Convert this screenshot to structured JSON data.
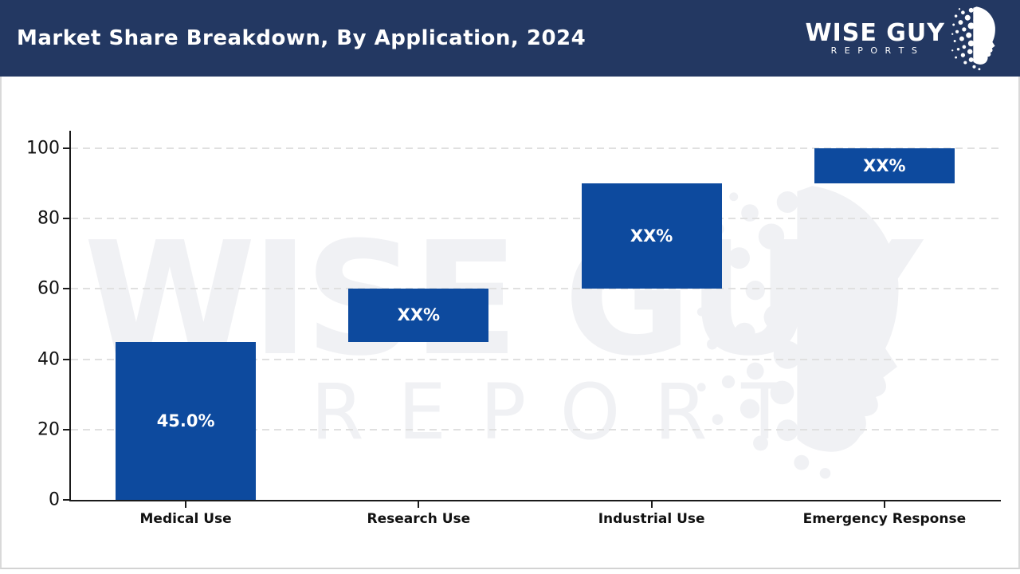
{
  "header": {
    "title": "Market Share Breakdown, By Application, 2024",
    "brand_color": "#233862",
    "logo": {
      "line1": "WISE GUY",
      "line2": "R E P O R T S"
    }
  },
  "watermark": {
    "line1": "WISE GUY",
    "line2": "R E P O R T S"
  },
  "chart_data": {
    "type": "bar",
    "subtype": "waterfall",
    "title": "Market Share Breakdown, By Application, 2024",
    "categories": [
      "Medical Use",
      "Research Use",
      "Industrial Use",
      "Emergency Response"
    ],
    "values": [
      45,
      15,
      30,
      10
    ],
    "bar_starts": [
      0,
      45,
      60,
      90
    ],
    "bar_labels": [
      "45.0%",
      "XX%",
      "XX%",
      "XX%"
    ],
    "xlabel": "",
    "ylabel": "",
    "ylim": [
      0,
      105
    ],
    "yticks": [
      0,
      20,
      40,
      60,
      80,
      100
    ],
    "grid": "horizontal-dashed",
    "legend": "none",
    "bar_color": "#0d4a9e",
    "bar_label_color": "#ffffff",
    "axis_color": "#1a1a1a",
    "gridline_color": "#e0e0e0"
  }
}
